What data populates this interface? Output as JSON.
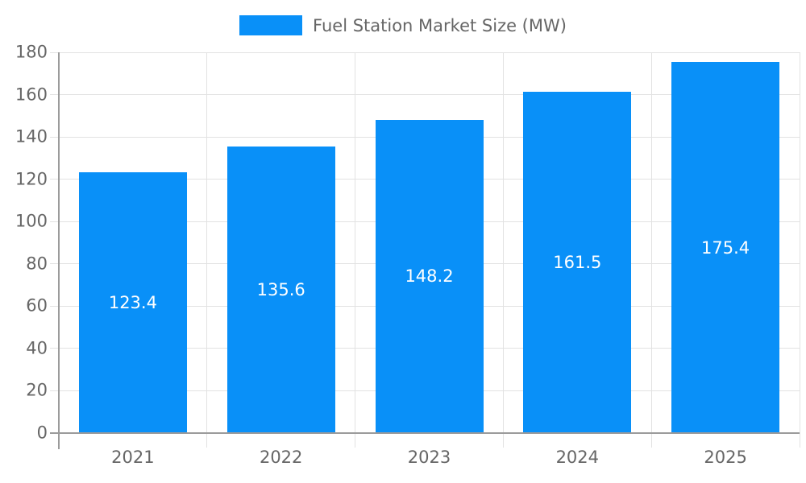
{
  "chart_data": {
    "type": "bar",
    "title": "Fuel Station Market Size (MW)",
    "legend_label": "Fuel Station Market Size (MW)",
    "legend_position": "top",
    "categories": [
      "2021",
      "2022",
      "2023",
      "2024",
      "2025"
    ],
    "series": [
      {
        "name": "Fuel Station Market Size (MW)",
        "values": [
          123.4,
          135.6,
          148.2,
          161.5,
          175.4
        ]
      }
    ],
    "value_labels": [
      "123.4",
      "135.6",
      "148.2",
      "161.5",
      "175.4"
    ],
    "xlabel": "",
    "ylabel": "",
    "ylim": [
      0,
      180
    ],
    "y_ticks": [
      0,
      20,
      40,
      60,
      80,
      100,
      120,
      140,
      160,
      180
    ],
    "grid": true,
    "colors": {
      "bar": "#0990f8",
      "text": "#666666",
      "grid": "#e2e2e2",
      "axis": "#9b9b9b",
      "value_label": "#ffffff"
    }
  }
}
